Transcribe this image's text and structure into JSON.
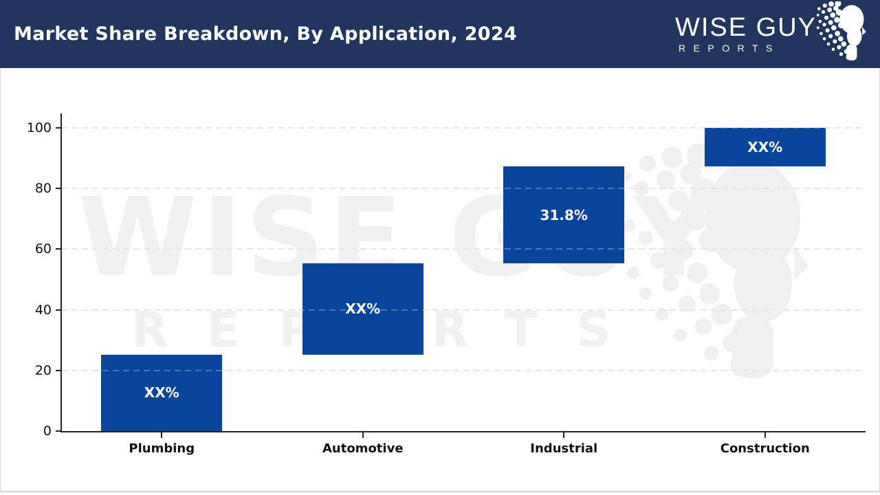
{
  "header": {
    "title": "Market Share Breakdown, By Application, 2024",
    "brand": {
      "line1": "WISE GUY",
      "line2": "REPORTS"
    }
  },
  "watermark": {
    "line1": "WISE GUY",
    "line2": "REPORTS"
  },
  "chart_data": {
    "type": "bar",
    "subtype": "waterfall-segments",
    "title": "Market Share Breakdown, By Application, 2024",
    "xlabel": "",
    "ylabel": "",
    "categories": [
      "Plumbing",
      "Automotive",
      "Industrial",
      "Construction"
    ],
    "segments": [
      {
        "category": "Plumbing",
        "start": 0,
        "end": 25.2,
        "value": 25.2,
        "label": "XX%"
      },
      {
        "category": "Automotive",
        "start": 25.2,
        "end": 55.4,
        "value": 30.2,
        "label": "XX%"
      },
      {
        "category": "Industrial",
        "start": 55.4,
        "end": 87.2,
        "value": 31.8,
        "label": "31.8%"
      },
      {
        "category": "Construction",
        "start": 87.2,
        "end": 100,
        "value": 12.8,
        "label": "XX%"
      }
    ],
    "y_ticks": [
      0,
      20,
      40,
      60,
      80,
      100
    ],
    "ylim": [
      0,
      105
    ],
    "grid": "horizontal-dashed",
    "legend": "none",
    "colors": {
      "bar": "#09459c",
      "bar_label": "#ffffff",
      "axis": "#222222",
      "gridline": "#dedede",
      "header_bg": "#21365f",
      "watermark": "#f1f1f1"
    }
  }
}
